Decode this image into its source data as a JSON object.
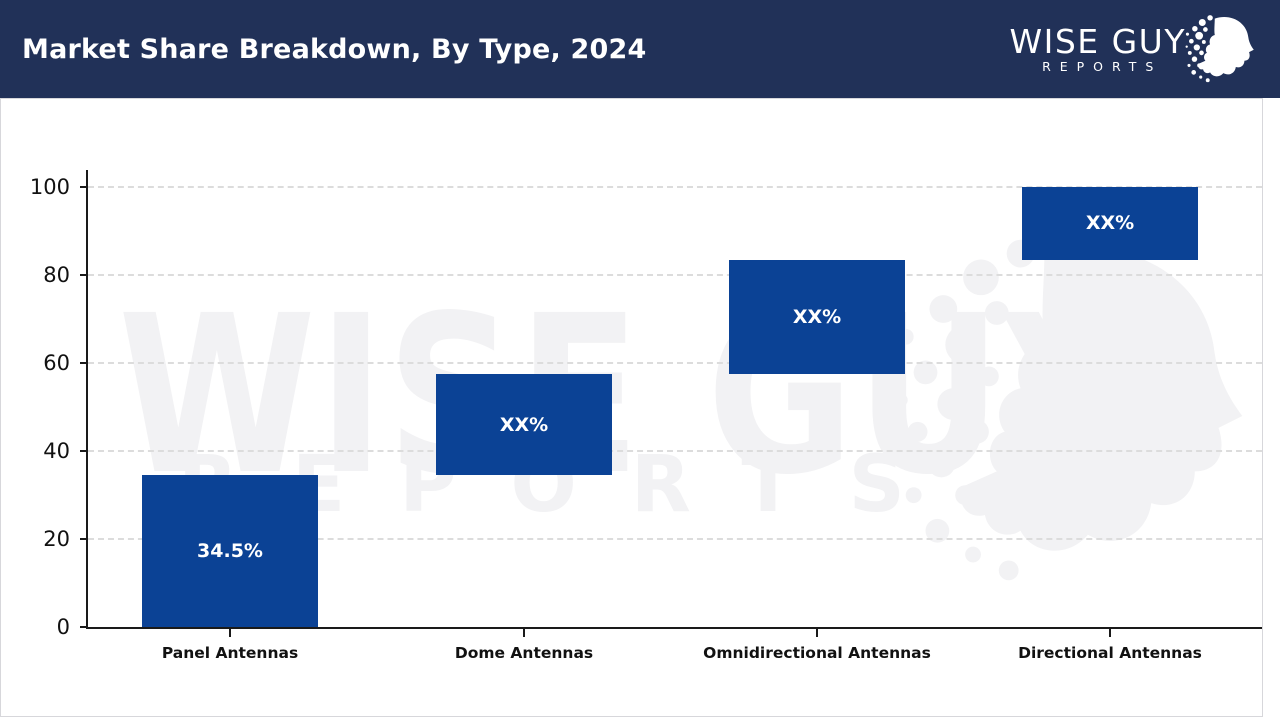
{
  "header": {
    "title": "Market Share Breakdown, By Type, 2024",
    "bg_color": "#213158",
    "logo": {
      "line1": "WISE GUY",
      "line2": "REPORTS"
    }
  },
  "watermark": {
    "line1": "WISE GUY",
    "line2": "REPORTS"
  },
  "chart_data": {
    "type": "bar",
    "subtype": "waterfall",
    "title": "Market Share Breakdown, By Type, 2024",
    "categories": [
      "Panel Antennas",
      "Dome Antennas",
      "Omnidirectional Antennas",
      "Directional Antennas"
    ],
    "segments": [
      {
        "category": "Panel Antennas",
        "start": 0,
        "end": 34.5,
        "label": "34.5%"
      },
      {
        "category": "Dome Antennas",
        "start": 34.5,
        "end": 57.5,
        "label": "XX%"
      },
      {
        "category": "Omnidirectional Antennas",
        "start": 57.5,
        "end": 83.5,
        "label": "XX%"
      },
      {
        "category": "Directional Antennas",
        "start": 83.5,
        "end": 100,
        "label": "XX%"
      }
    ],
    "ylim": [
      0,
      100
    ],
    "yticks": [
      0,
      20,
      40,
      60,
      80,
      100
    ],
    "xlabel": "",
    "ylabel": "",
    "grid": "horizontal-dashed",
    "legend": "none",
    "bar_color": "#0b4295",
    "bar_label_color": "#ffffff",
    "axis_color": "#1a1a1a"
  }
}
